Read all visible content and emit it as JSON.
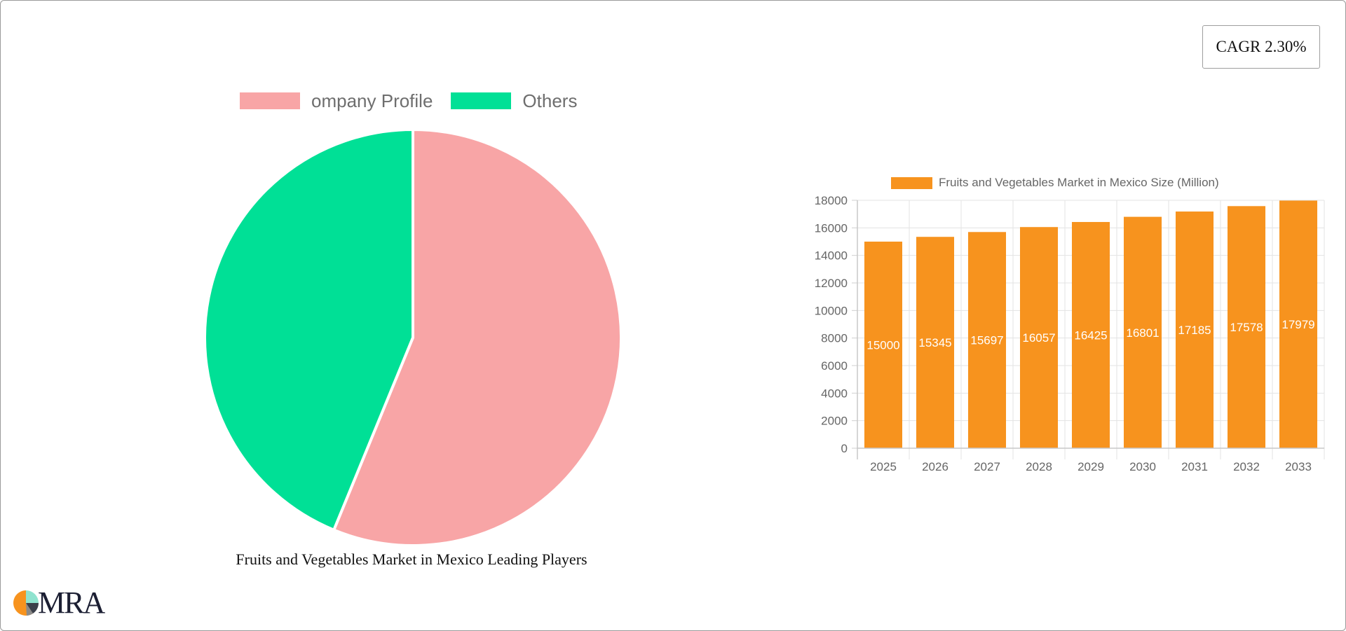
{
  "cagr_badge": {
    "label": "CAGR 2.30%"
  },
  "pie": {
    "legend": [
      {
        "label": "ompany Profile",
        "color": "#f8a5a6"
      },
      {
        "label": "Others",
        "color": "#00e096"
      }
    ],
    "caption": "Fruits and Vegetables Market in Mexico Leading Players"
  },
  "bar": {
    "legend_label": "Fruits and Vegetables Market in Mexico Size (Million)",
    "bar_color": "#f7931e",
    "y_ticks": [
      "0",
      "2000",
      "4000",
      "6000",
      "8000",
      "10000",
      "12000",
      "14000",
      "16000",
      "18000"
    ],
    "x_labels": [
      "2025",
      "2026",
      "2027",
      "2028",
      "2029",
      "2030",
      "2031",
      "2032",
      "2033"
    ],
    "value_labels": [
      "15000",
      "15345",
      "15697",
      "16057",
      "16425",
      "16801",
      "17185",
      "17578",
      "17979"
    ]
  },
  "logo": {
    "text": "MRA"
  },
  "chart_data": [
    {
      "type": "pie",
      "title": "Fruits and Vegetables Market in Mexico Leading Players",
      "categories": [
        "ompany Profile",
        "Others"
      ],
      "values": [
        56.2,
        43.8
      ],
      "colors": [
        "#f8a5a6",
        "#00e096"
      ],
      "legend_position": "top"
    },
    {
      "type": "bar",
      "title": "",
      "series": [
        {
          "name": "Fruits and Vegetables Market in Mexico Size (Million)",
          "values": [
            15000,
            15345,
            15697,
            16057,
            16425,
            16801,
            17185,
            17578,
            17979
          ]
        }
      ],
      "categories": [
        "2025",
        "2026",
        "2027",
        "2028",
        "2029",
        "2030",
        "2031",
        "2032",
        "2033"
      ],
      "xlabel": "",
      "ylabel": "",
      "ylim": [
        0,
        18000
      ],
      "y_tick_step": 2000,
      "grid": true,
      "legend_position": "top",
      "annotations": "CAGR 2.30%"
    }
  ]
}
